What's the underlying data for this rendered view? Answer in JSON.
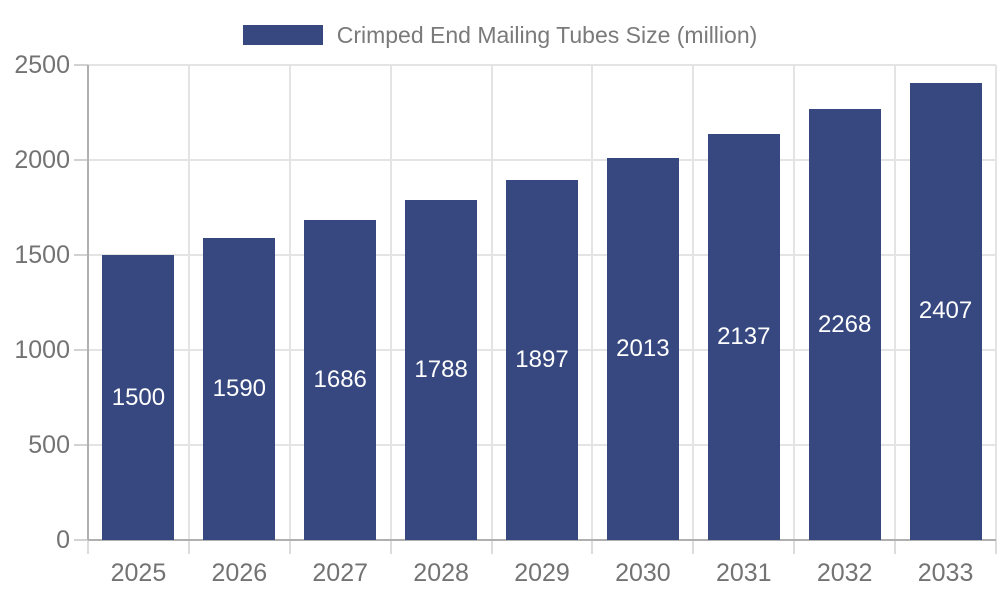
{
  "legend": {
    "label": "Crimped End Mailing Tubes Size (million)"
  },
  "colors": {
    "bar": "#36487F",
    "bar_label": "#FFFFFF",
    "axis_line": "#B0B0B0",
    "gridline": "#E4E4E4",
    "axis_text": "#737373",
    "legend_text": "#7A7A7A",
    "background": "#FFFFFF"
  },
  "chart_data": {
    "type": "bar",
    "title": "Crimped End Mailing Tubes Size (million)",
    "series": [
      {
        "name": "Crimped End Mailing Tubes Size (million)",
        "values": [
          1500,
          1590,
          1686,
          1788,
          1897,
          2013,
          2137,
          2268,
          2407
        ]
      }
    ],
    "categories": [
      "2025",
      "2026",
      "2027",
      "2028",
      "2029",
      "2030",
      "2031",
      "2032",
      "2033"
    ],
    "values": [
      1500,
      1590,
      1686,
      1788,
      1897,
      2013,
      2137,
      2268,
      2407
    ],
    "xlabel": "",
    "ylabel": "",
    "ylim": [
      0,
      2500
    ],
    "yticks": [
      "0",
      "500",
      "1000",
      "1500",
      "2000",
      "2500"
    ],
    "ytick_step": 500,
    "grid": true,
    "legend_position": "top",
    "bar_labels_inside": true
  }
}
